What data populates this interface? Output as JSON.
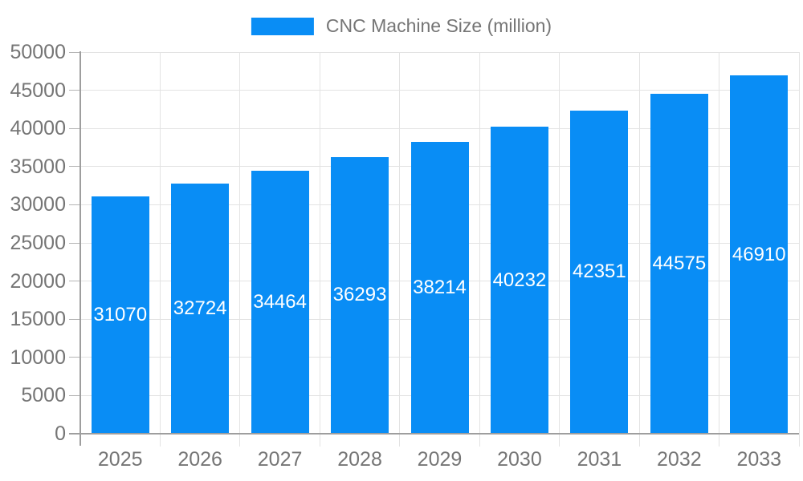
{
  "legend": {
    "label": "CNC Machine Size (million)"
  },
  "chart_data": {
    "type": "bar",
    "title": "CNC Machine Size (million)",
    "categories": [
      "2025",
      "2026",
      "2027",
      "2028",
      "2029",
      "2030",
      "2031",
      "2032",
      "2033"
    ],
    "values": [
      31070,
      32724,
      34464,
      36293,
      38214,
      40232,
      42351,
      44575,
      46910
    ],
    "xlabel": "",
    "ylabel": "",
    "ylim": [
      0,
      50000
    ],
    "yticks": [
      0,
      5000,
      10000,
      15000,
      20000,
      25000,
      30000,
      35000,
      40000,
      45000,
      50000
    ],
    "grid": true,
    "legend_position": "top-center",
    "bar_color": "#098DF5",
    "value_label_style": "inside-center-white"
  },
  "colors": {
    "bar": "#098DF5",
    "axis_line": "#9E9E9E",
    "gridline": "#E3E3E3",
    "tick": "#B5B5B5",
    "axis_text": "#757575",
    "value_text": "#FFFFFF",
    "background": "#FFFFFF"
  }
}
